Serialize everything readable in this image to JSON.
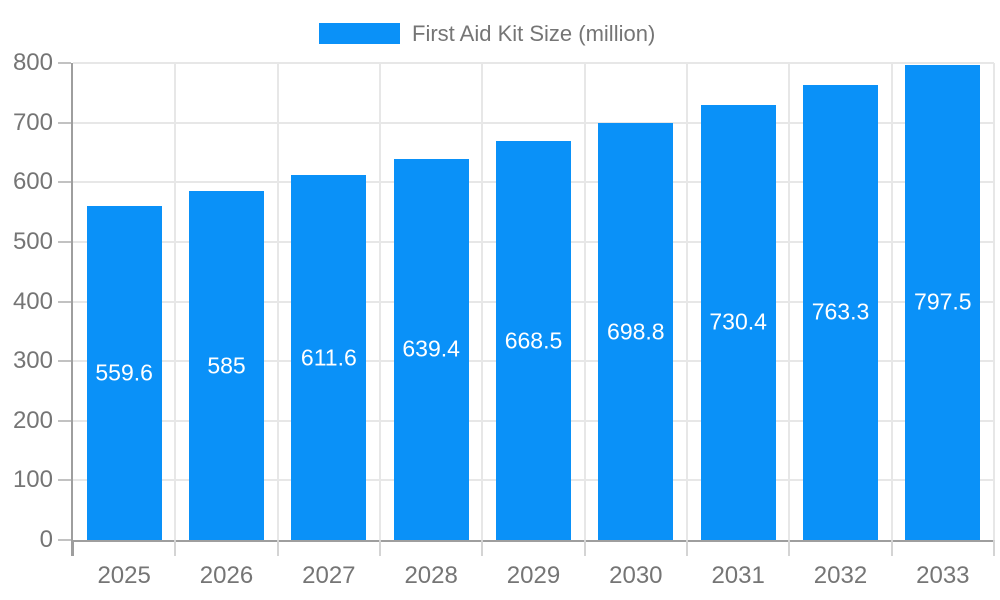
{
  "legend": {
    "label": "First Aid Kit Size (million)"
  },
  "chart_data": {
    "type": "bar",
    "title": "First Aid Kit Size (million)",
    "series_name": "First Aid Kit Size (million)",
    "categories": [
      "2025",
      "2026",
      "2027",
      "2028",
      "2029",
      "2030",
      "2031",
      "2032",
      "2033"
    ],
    "values": [
      559.6,
      585,
      611.6,
      639.4,
      668.5,
      698.8,
      730.4,
      763.3,
      797.5
    ],
    "xlabel": "",
    "ylabel": "",
    "ylim": [
      0,
      800
    ],
    "yticks": [
      0,
      100,
      200,
      300,
      400,
      500,
      600,
      700,
      800
    ],
    "grid": true,
    "legend_position": "top-center",
    "value_labels": "inside-center",
    "colors": {
      "bar": "#0a91f8",
      "value_label_text": "#ffffff",
      "axis_line": "#9e9e9e",
      "gridline": "#e7e7e7",
      "y_tick": "#c2c2c2",
      "x_tick": "#d4d4d4",
      "axis_text": "#757575"
    }
  }
}
